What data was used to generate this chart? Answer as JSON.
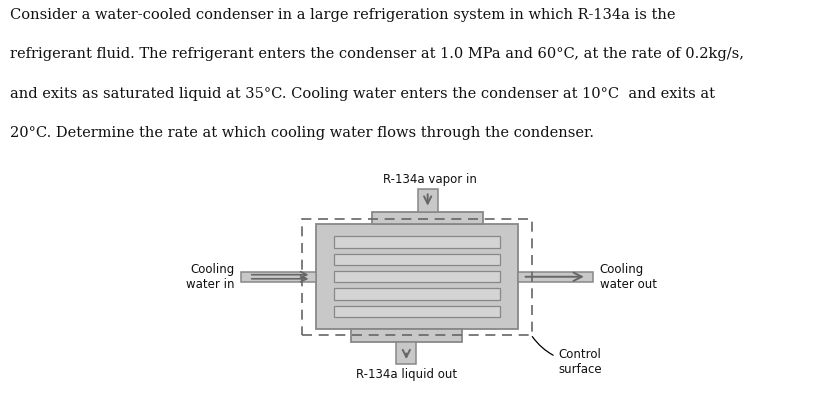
{
  "paragraph_lines": [
    "Consider a water-cooled condenser in a large refrigeration system in which R-134a is the",
    "refrigerant fluid. The refrigerant enters the condenser at 1.0 MPa and 60°C, at the rate of 0.2kg/s,",
    "and exits as saturated liquid at 35°C. Cooling water enters the condenser at 10°C  and exits at",
    "20°C. Determine the rate at which cooling water flows through the condenser."
  ],
  "label_vapor_in": "R-134a vapor in",
  "label_liquid_out": "R-134a liquid out",
  "label_cooling_water_in": "Cooling\nwater in",
  "label_cooling_water_out": "Cooling\nwater out",
  "label_control_surface": "Control\nsurface",
  "diagram_bg": "#e0e0e0",
  "shell_face": "#c8c8c8",
  "shell_edge": "#888888",
  "tube_face": "#d4d4d4",
  "tube_edge": "#888888",
  "pipe_face": "#c8c8c8",
  "pipe_edge": "#888888",
  "dashed_color": "#666666",
  "arrow_color": "#666666",
  "font_size_text": 10.5,
  "font_size_label": 8.5,
  "text_color": "#111111"
}
